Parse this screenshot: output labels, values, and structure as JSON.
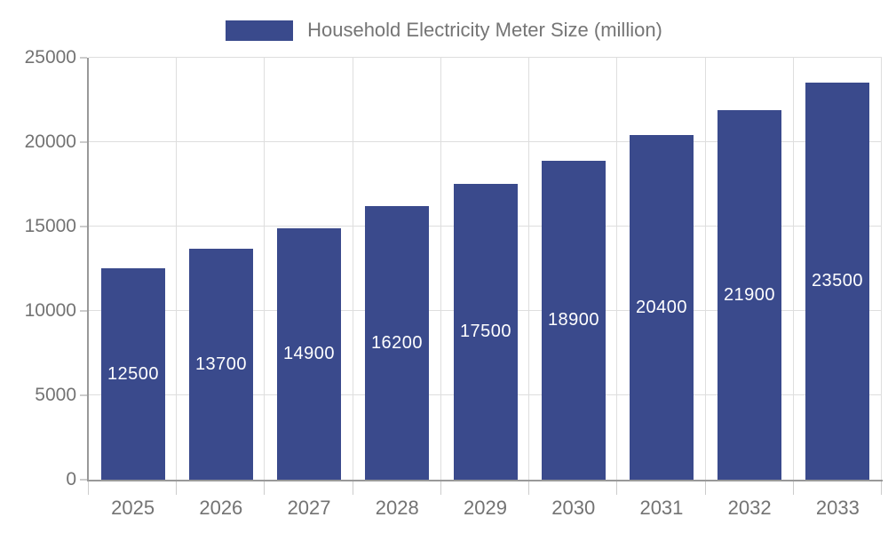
{
  "chart_data": {
    "type": "bar",
    "title": "",
    "legend": {
      "label": "Household Electricity Meter Size (million)",
      "position": "top-center"
    },
    "categories": [
      "2025",
      "2026",
      "2027",
      "2028",
      "2029",
      "2030",
      "2031",
      "2032",
      "2033"
    ],
    "series": [
      {
        "name": "Household Electricity Meter Size (million)",
        "values": [
          12500,
          13700,
          14900,
          16200,
          17500,
          18900,
          20400,
          21900,
          23500
        ],
        "color": "#3A4A8C",
        "label_color": "#FFFFFF",
        "label_position": "inside-center"
      }
    ],
    "xlabel": "",
    "ylabel": "",
    "ylim": [
      0,
      25000
    ],
    "yticks": [
      0,
      5000,
      10000,
      15000,
      20000,
      25000
    ],
    "grid": true,
    "colors": {
      "axis_line": "#999999",
      "tick": "#CCCCCC",
      "gridline": "#DEDEDE",
      "axis_text": "#737373",
      "legend_text": "#757575",
      "background": "#FFFFFF"
    }
  }
}
